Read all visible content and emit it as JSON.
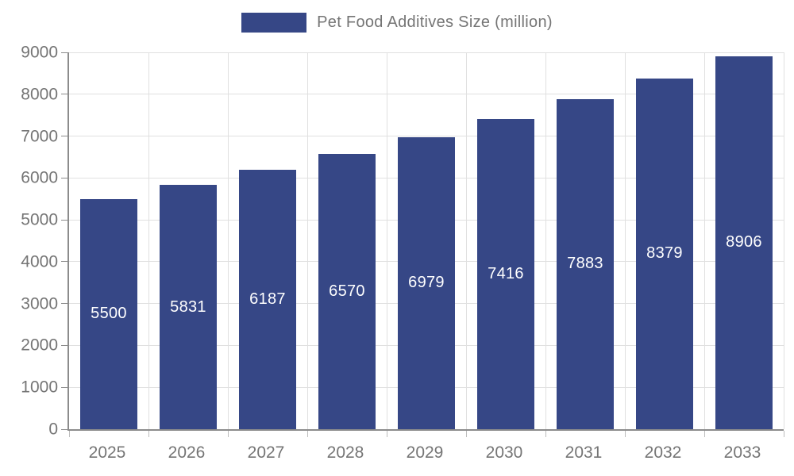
{
  "chart": {
    "colors": {
      "bar": "#364786",
      "bar_label": "#ffffff",
      "axis": "#8c8c8c",
      "grid": "#e0e0e0",
      "tick_text": "#757575",
      "legend_text": "#757575"
    }
  },
  "chart_data": {
    "type": "bar",
    "title": "Pet Food Additives Size (million)",
    "legend_entries": [
      "Pet Food Additives Size (million)"
    ],
    "legend_position": "top-center",
    "categories": [
      "2025",
      "2026",
      "2027",
      "2028",
      "2029",
      "2030",
      "2031",
      "2032",
      "2033"
    ],
    "values": [
      5500,
      5831,
      6187,
      6570,
      6979,
      7416,
      7883,
      8379,
      8906
    ],
    "xlabel": "",
    "ylabel": "",
    "ylim": [
      0,
      9000
    ],
    "ytick_step": 1000,
    "ytick_labels": [
      "0",
      "1000",
      "2000",
      "3000",
      "4000",
      "5000",
      "6000",
      "7000",
      "8000",
      "9000"
    ],
    "grid": true,
    "bar_labels_inside": true
  }
}
